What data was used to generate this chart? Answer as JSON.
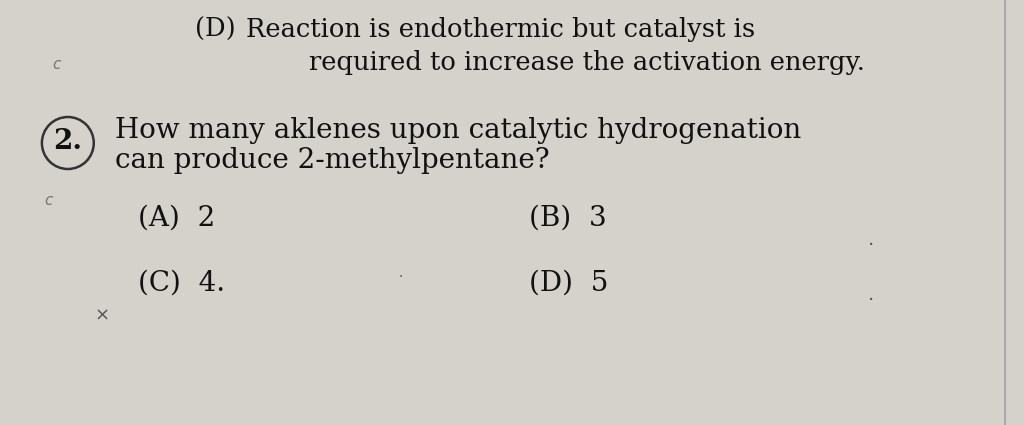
{
  "bg_color": "#d5d2cc",
  "text_color": "#111111",
  "line1_part1": "(D)",
  "line1_part2": "Reaction is endothermic but catalyst is",
  "line2_part2": "required to increase the activation energy.",
  "q_number": "2.",
  "q_line1": "How many aklenes upon catalytic hydrogenation",
  "q_line2": "can produce 2-methylpentane?",
  "opt_A": "(A)  2",
  "opt_B": "(B)  3",
  "opt_C": "(C)  4.",
  "opt_D_last": "(D)  5",
  "font_size_top": 18.5,
  "font_size_q": 20,
  "font_size_opts": 20,
  "font_family": "DejaVu Serif",
  "border_color": "#aaaaaa",
  "pencil_color": "#777777"
}
